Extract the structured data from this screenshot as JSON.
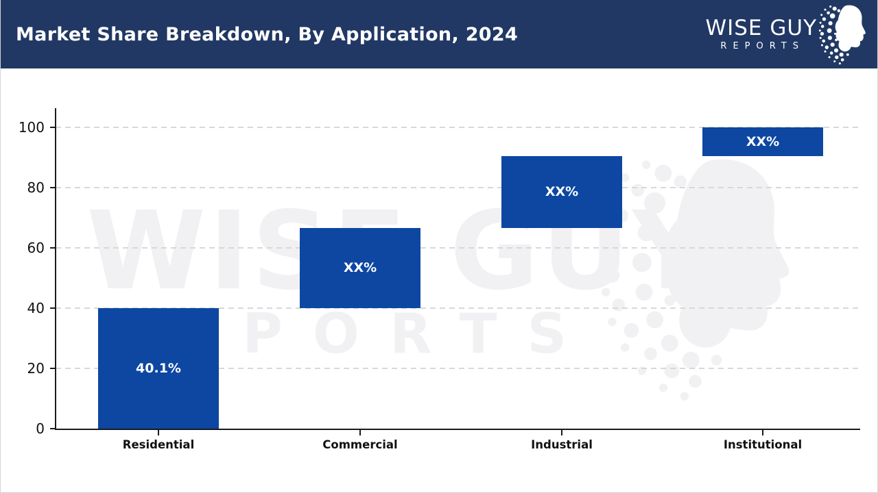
{
  "header": {
    "title": "Market Share Breakdown, By Application, 2024",
    "logo": {
      "line1": "WISE GUY",
      "line2": "REPORTS"
    }
  },
  "watermark": {
    "line1": "WISE GUY",
    "line2": "REPORTS"
  },
  "chart_data": {
    "type": "bar",
    "variant": "floating-waterfall",
    "title": "Market Share Breakdown, By Application, 2024",
    "categories": [
      "Residential",
      "Commercial",
      "Industrial",
      "Institutional"
    ],
    "series": [
      {
        "name": "Market share (%)",
        "segments": [
          {
            "category": "Residential",
            "start": 0,
            "end": 40.1,
            "label": "40.1%"
          },
          {
            "category": "Commercial",
            "start": 40.1,
            "end": 66.6,
            "label": "XX%"
          },
          {
            "category": "Industrial",
            "start": 66.6,
            "end": 90.5,
            "label": "XX%"
          },
          {
            "category": "Institutional",
            "start": 90.5,
            "end": 100,
            "label": "XX%"
          }
        ]
      }
    ],
    "xlabel": "",
    "ylabel": "",
    "ylim": [
      0,
      106
    ],
    "yticks": [
      0,
      20,
      40,
      60,
      80,
      100
    ],
    "grid": "horizontal-dashed",
    "legend_position": "none",
    "colors": {
      "bar": "#0d47a1",
      "bar_label": "#ffffff",
      "axis": "#1a1a1a",
      "gridline": "#d8d8d8",
      "header_bg": "#213864",
      "watermark": "#f1f1f3"
    }
  }
}
